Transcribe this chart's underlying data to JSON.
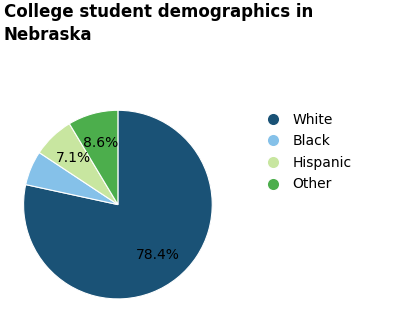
{
  "title": "College student demographics in\nNebraska",
  "labels": [
    "White",
    "Black",
    "Hispanic",
    "Other"
  ],
  "values": [
    78.4,
    5.9,
    7.1,
    8.6
  ],
  "colors": [
    "#1a5276",
    "#85c1e9",
    "#c8e6a0",
    "#4cae4c"
  ],
  "pct_labels": [
    "78.4%",
    "",
    "7.1%",
    "8.6%"
  ],
  "legend_labels": [
    "White",
    "Black",
    "Hispanic",
    "Other"
  ],
  "background_color": "#ffffff",
  "title_fontsize": 12,
  "label_fontsize": 10,
  "legend_fontsize": 10
}
